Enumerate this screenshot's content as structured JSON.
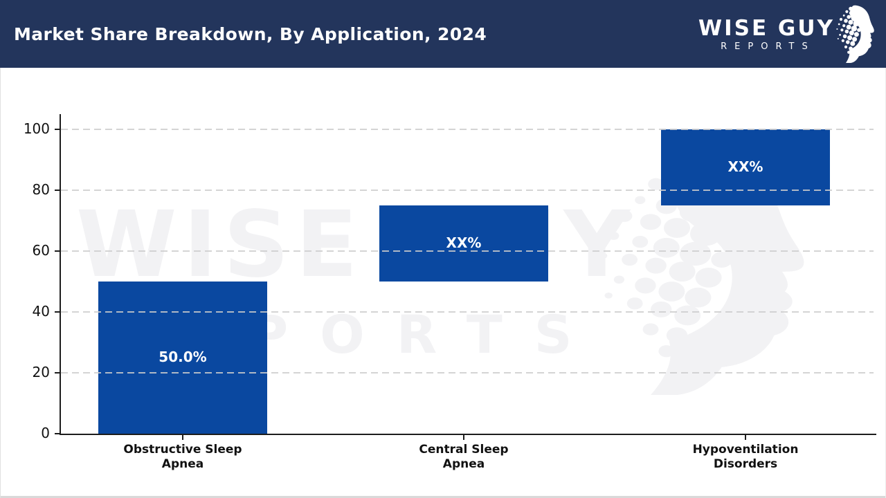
{
  "header": {
    "title": "Market Share Breakdown, By Application, 2024",
    "logo": {
      "brand_line1": "WISE GUY",
      "brand_line2": "REPORTS"
    }
  },
  "watermark": {
    "line1": "WISE GUY",
    "line2": "REPORTS"
  },
  "colors": {
    "header_bg": "#23355c",
    "bar": "#0a48a0",
    "grid": "#cfcfcf",
    "axis": "#1c1c1c",
    "watermark": "#f2f2f4",
    "title_text": "#ffffff",
    "bar_label_text": "#ffffff",
    "tick_text": "#111111"
  },
  "chart_data": {
    "type": "bar",
    "subtype": "waterfall",
    "title": "Market Share Breakdown, By Application, 2024",
    "categories": [
      [
        "Obstructive Sleep",
        "Apnea"
      ],
      [
        "Central Sleep",
        "Apnea"
      ],
      [
        "Hypoventilation",
        "Disorders"
      ]
    ],
    "series": [
      {
        "name": "Market Share",
        "values": [
          {
            "category": "Obstructive Sleep Apnea",
            "base": 0,
            "top": 50,
            "label": "50.0%"
          },
          {
            "category": "Central Sleep Apnea",
            "base": 50,
            "top": 75,
            "label": "XX%"
          },
          {
            "category": "Hypoventilation Disorders",
            "base": 75,
            "top": 100,
            "label": "XX%"
          }
        ]
      }
    ],
    "xlabel": "",
    "ylabel": "",
    "ylim": [
      0,
      100
    ],
    "yticks": [
      0,
      20,
      40,
      60,
      80,
      100
    ],
    "grid": "horizontal-dashed",
    "legend": "none"
  }
}
